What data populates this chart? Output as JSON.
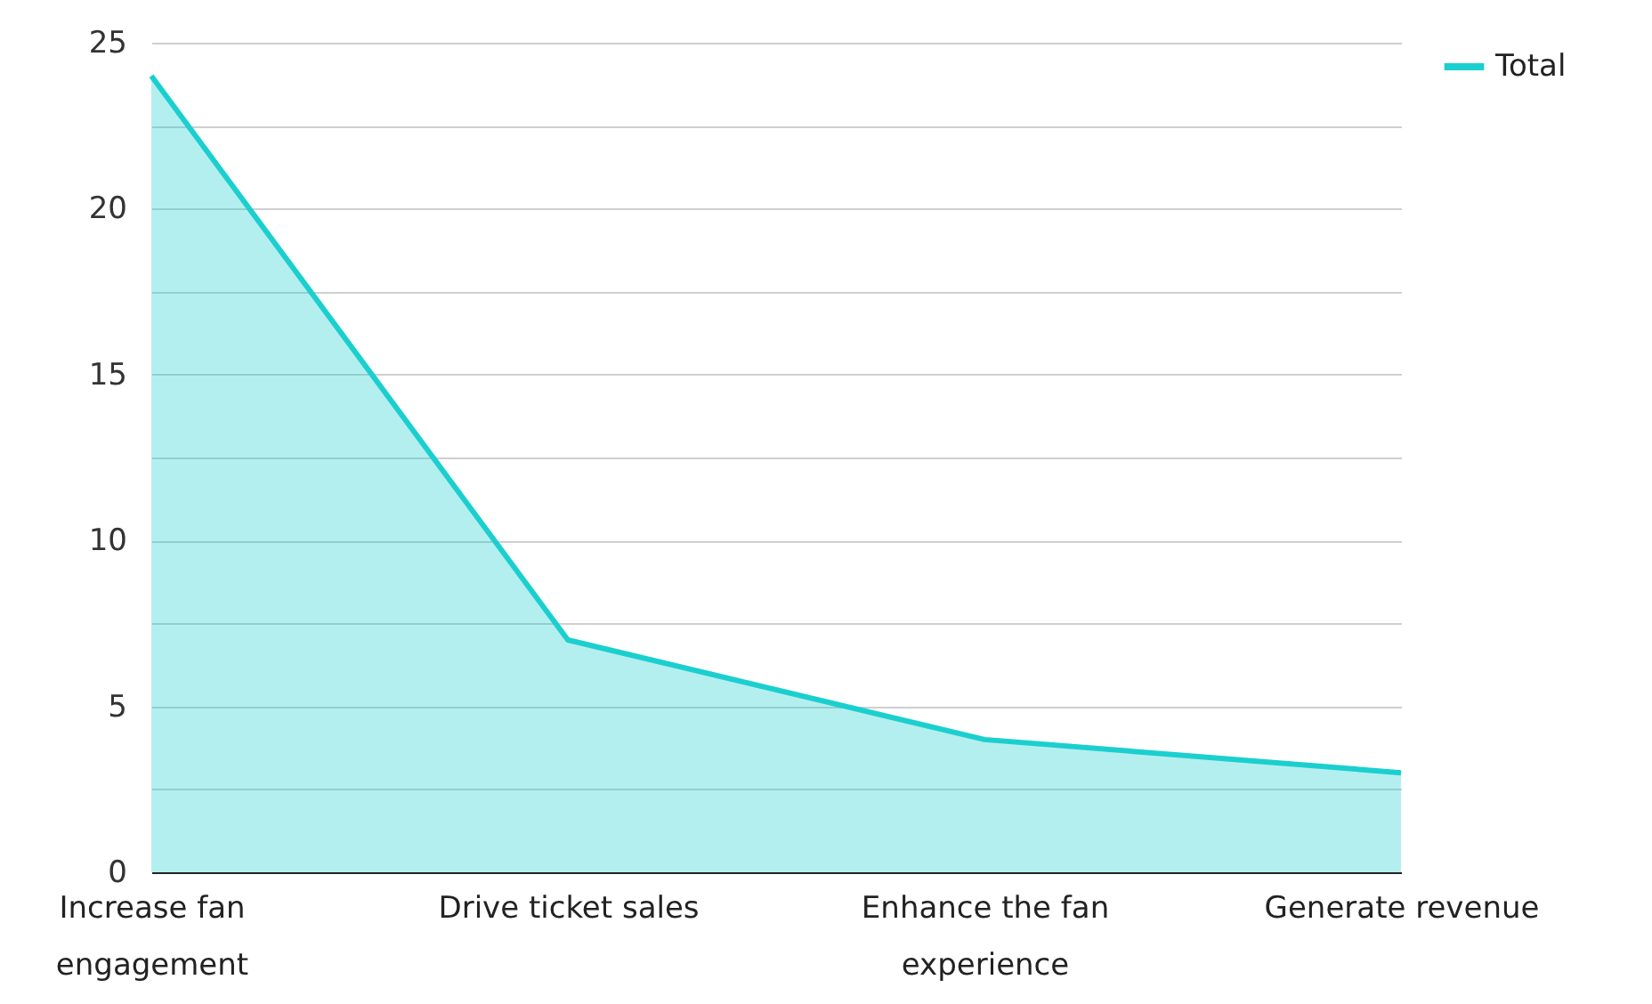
{
  "chart_data": {
    "type": "area",
    "categories": [
      "Increase fan engagement",
      "Drive ticket sales",
      "Enhance the fan experience",
      "Generate revenue"
    ],
    "series": [
      {
        "name": "Total",
        "color": "#1ccfcf",
        "values": [
          24,
          7,
          4,
          3
        ]
      }
    ],
    "ylim": [
      0,
      25
    ],
    "yticks": [
      0,
      {
        "value": 2.5,
        "label": null
      },
      5,
      {
        "value": 7.5,
        "label": null
      },
      10,
      {
        "value": 12.5,
        "label": null
      },
      15,
      {
        "value": 17.5,
        "label": null
      },
      20,
      {
        "value": 22.5,
        "label": null
      },
      25
    ],
    "grid": "y",
    "legend": "top right"
  }
}
